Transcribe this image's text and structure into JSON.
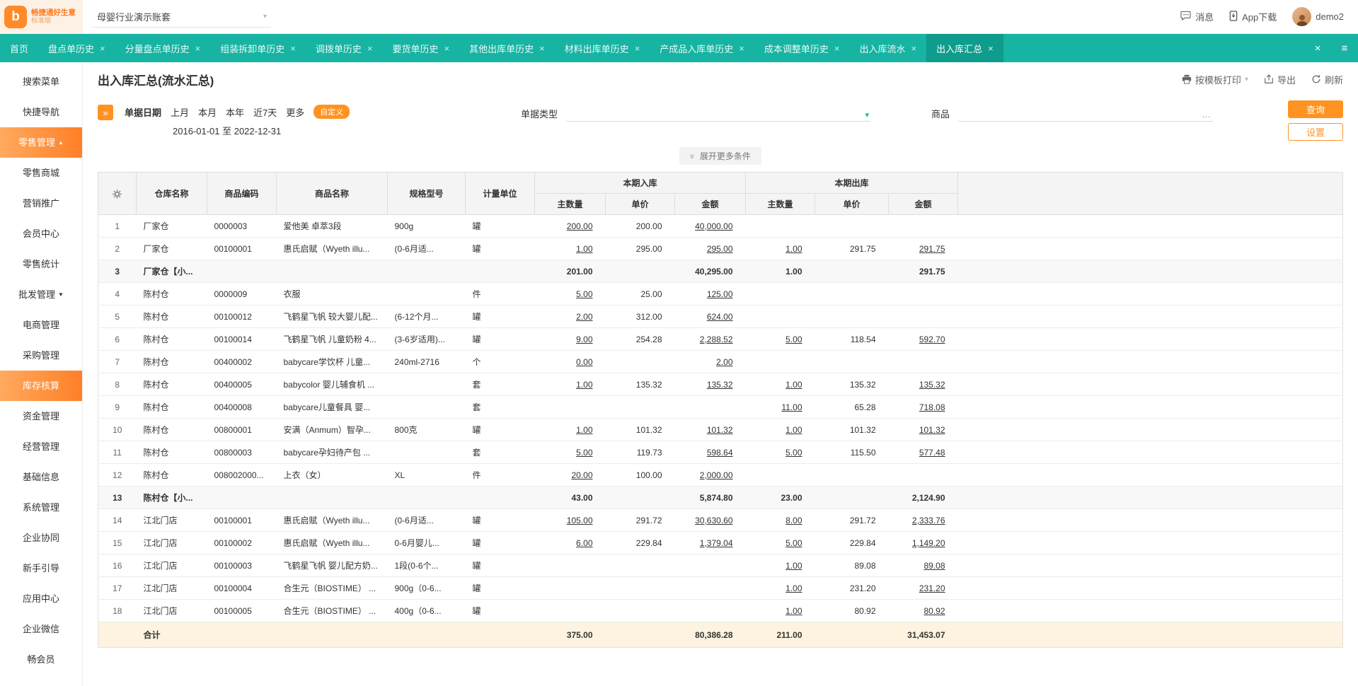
{
  "colors": {
    "teal": "#17b3a3",
    "teal_dark": "#0e9c8c",
    "orange": "#ff9322",
    "total_row_bg": "#fdf3e0"
  },
  "topbar": {
    "brand": {
      "name": "畅捷通好生意",
      "edition": "标准版",
      "logo_letter": "b"
    },
    "account_select": {
      "value": "母婴行业演示账套"
    },
    "message_label": "消息",
    "app_download_label": "App下载",
    "username": "demo2"
  },
  "tabs": {
    "items": [
      {
        "label": "首页",
        "closable": false,
        "active": false
      },
      {
        "label": "盘点单历史",
        "closable": true,
        "active": false
      },
      {
        "label": "分量盘点单历史",
        "closable": true,
        "active": false
      },
      {
        "label": "组装拆卸单历史",
        "closable": true,
        "active": false
      },
      {
        "label": "调拨单历史",
        "closable": true,
        "active": false
      },
      {
        "label": "要货单历史",
        "closable": true,
        "active": false
      },
      {
        "label": "其他出库单历史",
        "closable": true,
        "active": false
      },
      {
        "label": "材料出库单历史",
        "closable": true,
        "active": false
      },
      {
        "label": "产成品入库单历史",
        "closable": true,
        "active": false
      },
      {
        "label": "成本调整单历史",
        "closable": true,
        "active": false
      },
      {
        "label": "出入库流水",
        "closable": true,
        "active": false
      },
      {
        "label": "出入库汇总",
        "closable": true,
        "active": true
      }
    ]
  },
  "sidebar": {
    "items": [
      {
        "label": "搜索菜单",
        "type": "item"
      },
      {
        "label": "快捷导航",
        "type": "item"
      },
      {
        "label": "零售管理",
        "type": "group",
        "arrow": "up",
        "active": true
      },
      {
        "label": "零售商城",
        "type": "child"
      },
      {
        "label": "营销推广",
        "type": "child"
      },
      {
        "label": "会员中心",
        "type": "child"
      },
      {
        "label": "零售统计",
        "type": "child"
      },
      {
        "label": "批发管理",
        "type": "group",
        "arrow": "down"
      },
      {
        "label": "电商管理",
        "type": "item"
      },
      {
        "label": "采购管理",
        "type": "item"
      },
      {
        "label": "库存核算",
        "type": "item",
        "active": true
      },
      {
        "label": "资金管理",
        "type": "item"
      },
      {
        "label": "经营管理",
        "type": "item"
      },
      {
        "label": "基础信息",
        "type": "item"
      },
      {
        "label": "系统管理",
        "type": "item"
      },
      {
        "label": "企业协同",
        "type": "item"
      },
      {
        "label": "新手引导",
        "type": "item"
      },
      {
        "label": "应用中心",
        "type": "item"
      },
      {
        "label": "企业微信",
        "type": "item"
      },
      {
        "label": "畅会员",
        "type": "item"
      }
    ]
  },
  "page": {
    "title": "出入库汇总(流水汇总)",
    "actions": {
      "print": "按模板打印",
      "export": "导出",
      "refresh": "刷新"
    }
  },
  "filters": {
    "date_label": "单据日期",
    "quick_ranges": [
      "上月",
      "本月",
      "本年",
      "近7天",
      "更多"
    ],
    "custom_label": "自定义",
    "date_range": "2016-01-01 至 2022-12-31",
    "doc_type_label": "单据类型",
    "product_label": "商品",
    "search_button": "查询",
    "settings_button": "设置",
    "expand_more": "展开更多条件"
  },
  "table": {
    "headers": {
      "warehouse": "仓库名称",
      "code": "商品编码",
      "name": "商品名称",
      "spec": "规格型号",
      "unit": "计量单位",
      "in_group": "本期入库",
      "out_group": "本期出库",
      "qty": "主数量",
      "price": "单价",
      "amount": "金额"
    },
    "rows": [
      {
        "no": "1",
        "type": "data",
        "warehouse": "厂家仓",
        "code": "0000003",
        "name": "爱他美 卓萃3段",
        "spec": "900g",
        "unit": "罐",
        "in_qty": "200.00",
        "in_price": "200.00",
        "in_amount": "40,000.00",
        "out_qty": "",
        "out_price": "",
        "out_amount": ""
      },
      {
        "no": "2",
        "type": "data",
        "warehouse": "厂家仓",
        "code": "00100001",
        "name": "惠氏启赋（Wyeth illu...",
        "spec": "(0-6月适...",
        "unit": "罐",
        "in_qty": "1.00",
        "in_price": "295.00",
        "in_amount": "295.00",
        "out_qty": "1.00",
        "out_price": "291.75",
        "out_amount": "291.75"
      },
      {
        "no": "3",
        "type": "subtotal",
        "warehouse": "厂家仓【小...",
        "code": "",
        "name": "",
        "spec": "",
        "unit": "",
        "in_qty": "201.00",
        "in_price": "",
        "in_amount": "40,295.00",
        "out_qty": "1.00",
        "out_price": "",
        "out_amount": "291.75"
      },
      {
        "no": "4",
        "type": "data",
        "warehouse": "陈村仓",
        "code": "0000009",
        "name": "衣服",
        "spec": "",
        "unit": "件",
        "in_qty": "5.00",
        "in_price": "25.00",
        "in_amount": "125.00",
        "out_qty": "",
        "out_price": "",
        "out_amount": ""
      },
      {
        "no": "5",
        "type": "data",
        "warehouse": "陈村仓",
        "code": "00100012",
        "name": "飞鹤星飞帆 较大婴儿配...",
        "spec": "(6-12个月...",
        "unit": "罐",
        "in_qty": "2.00",
        "in_price": "312.00",
        "in_amount": "624.00",
        "out_qty": "",
        "out_price": "",
        "out_amount": ""
      },
      {
        "no": "6",
        "type": "data",
        "warehouse": "陈村仓",
        "code": "00100014",
        "name": "飞鹤星飞帆 儿童奶粉 4...",
        "spec": "(3-6岁适用)...",
        "unit": "罐",
        "in_qty": "9.00",
        "in_price": "254.28",
        "in_amount": "2,288.52",
        "out_qty": "5.00",
        "out_price": "118.54",
        "out_amount": "592.70"
      },
      {
        "no": "7",
        "type": "data",
        "warehouse": "陈村仓",
        "code": "00400002",
        "name": "babycare学饮杯 儿童...",
        "spec": "240ml-2716",
        "unit": "个",
        "in_qty": "0.00",
        "in_price": "",
        "in_amount": "2.00",
        "out_qty": "",
        "out_price": "",
        "out_amount": ""
      },
      {
        "no": "8",
        "type": "data",
        "warehouse": "陈村仓",
        "code": "00400005",
        "name": "babycolor 婴儿辅食机 ...",
        "spec": "",
        "unit": "套",
        "in_qty": "1.00",
        "in_price": "135.32",
        "in_amount": "135.32",
        "out_qty": "1.00",
        "out_price": "135.32",
        "out_amount": "135.32"
      },
      {
        "no": "9",
        "type": "data",
        "warehouse": "陈村仓",
        "code": "00400008",
        "name": "babycare儿童餐具 婴...",
        "spec": "",
        "unit": "套",
        "in_qty": "",
        "in_price": "",
        "in_amount": "",
        "out_qty": "11.00",
        "out_price": "65.28",
        "out_amount": "718.08"
      },
      {
        "no": "10",
        "type": "data",
        "warehouse": "陈村仓",
        "code": "00800001",
        "name": "安满（Anmum）智孕...",
        "spec": "800克",
        "unit": "罐",
        "in_qty": "1.00",
        "in_price": "101.32",
        "in_amount": "101.32",
        "out_qty": "1.00",
        "out_price": "101.32",
        "out_amount": "101.32"
      },
      {
        "no": "11",
        "type": "data",
        "warehouse": "陈村仓",
        "code": "00800003",
        "name": "babycare孕妇待产包 ...",
        "spec": "",
        "unit": "套",
        "in_qty": "5.00",
        "in_price": "119.73",
        "in_amount": "598.64",
        "out_qty": "5.00",
        "out_price": "115.50",
        "out_amount": "577.48"
      },
      {
        "no": "12",
        "type": "data",
        "warehouse": "陈村仓",
        "code": "008002000...",
        "name": "上衣（女）",
        "spec": "XL",
        "unit": "件",
        "in_qty": "20.00",
        "in_price": "100.00",
        "in_amount": "2,000.00",
        "out_qty": "",
        "out_price": "",
        "out_amount": ""
      },
      {
        "no": "13",
        "type": "subtotal",
        "warehouse": "陈村仓【小...",
        "code": "",
        "name": "",
        "spec": "",
        "unit": "",
        "in_qty": "43.00",
        "in_price": "",
        "in_amount": "5,874.80",
        "out_qty": "23.00",
        "out_price": "",
        "out_amount": "2,124.90"
      },
      {
        "no": "14",
        "type": "data",
        "warehouse": "江北门店",
        "code": "00100001",
        "name": "惠氏启赋（Wyeth illu...",
        "spec": "(0-6月适...",
        "unit": "罐",
        "in_qty": "105.00",
        "in_price": "291.72",
        "in_amount": "30,630.60",
        "out_qty": "8.00",
        "out_price": "291.72",
        "out_amount": "2,333.76"
      },
      {
        "no": "15",
        "type": "data",
        "warehouse": "江北门店",
        "code": "00100002",
        "name": "惠氏启赋（Wyeth illu...",
        "spec": "0-6月婴儿...",
        "unit": "罐",
        "in_qty": "6.00",
        "in_price": "229.84",
        "in_amount": "1,379.04",
        "out_qty": "5.00",
        "out_price": "229.84",
        "out_amount": "1,149.20"
      },
      {
        "no": "16",
        "type": "data",
        "warehouse": "江北门店",
        "code": "00100003",
        "name": "飞鹤星飞帆 婴儿配方奶...",
        "spec": "1段(0-6个...",
        "unit": "罐",
        "in_qty": "",
        "in_price": "",
        "in_amount": "",
        "out_qty": "1.00",
        "out_price": "89.08",
        "out_amount": "89.08"
      },
      {
        "no": "17",
        "type": "data",
        "warehouse": "江北门店",
        "code": "00100004",
        "name": "合生元（BIOSTIME） ...",
        "spec": "900g（0-6...",
        "unit": "罐",
        "in_qty": "",
        "in_price": "",
        "in_amount": "",
        "out_qty": "1.00",
        "out_price": "231.20",
        "out_amount": "231.20"
      },
      {
        "no": "18",
        "type": "data",
        "warehouse": "江北门店",
        "code": "00100005",
        "name": "合生元（BIOSTIME） ...",
        "spec": "400g（0-6...",
        "unit": "罐",
        "in_qty": "",
        "in_price": "",
        "in_amount": "",
        "out_qty": "1.00",
        "out_price": "80.92",
        "out_amount": "80.92"
      }
    ],
    "total": {
      "label": "合计",
      "in_qty": "375.00",
      "in_amount": "80,386.28",
      "out_qty": "211.00",
      "out_amount": "31,453.07"
    }
  }
}
